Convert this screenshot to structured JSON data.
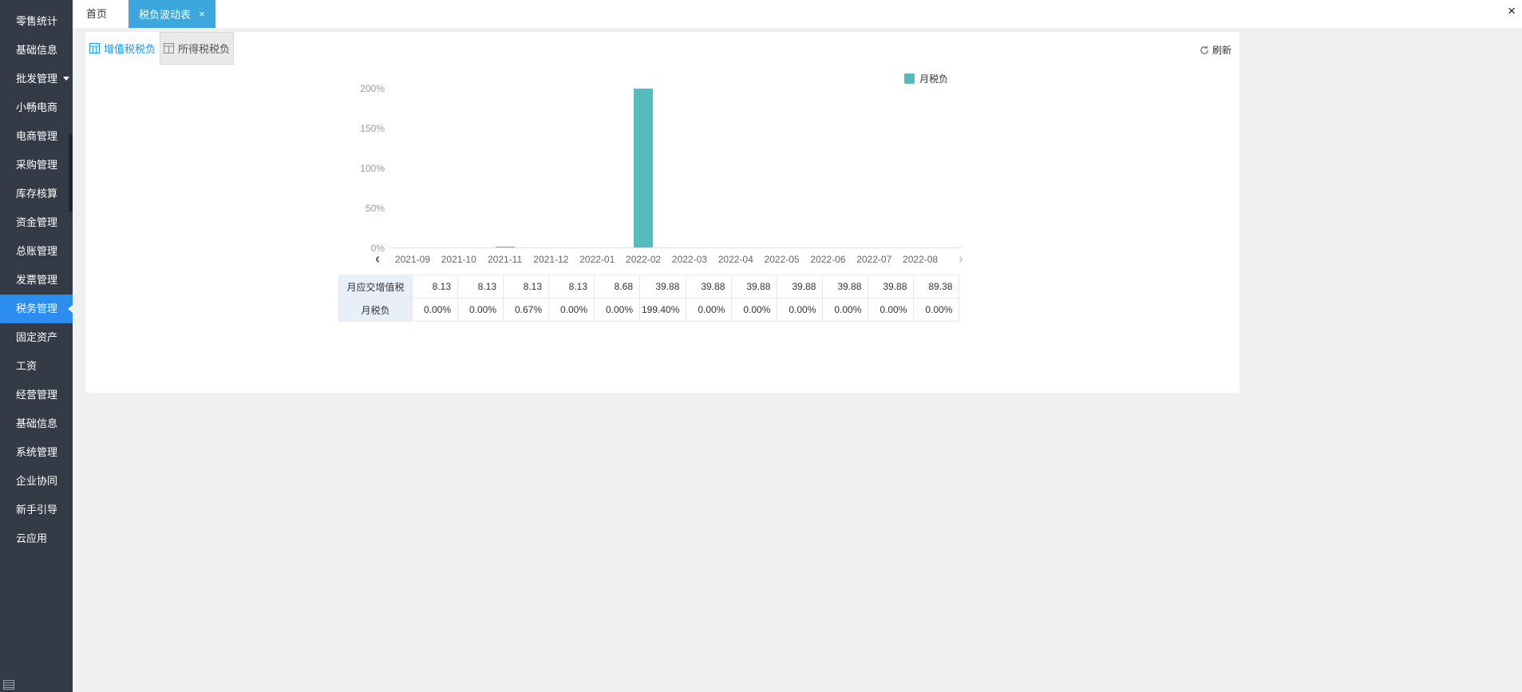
{
  "colors": {
    "page_bg": "#f0f0f0",
    "sidebar_bg": "#343a46",
    "sidebar_active_bg": "#2d8cf0",
    "tab_active_bg": "#3ba7dc",
    "accent_blue": "#2196f3",
    "bar_color": "#54bcbd"
  },
  "sidebar": {
    "items": [
      {
        "label": "零售统计",
        "active": false,
        "has_caret": false
      },
      {
        "label": "基础信息",
        "active": false,
        "has_caret": false
      },
      {
        "label": "批发管理",
        "active": false,
        "has_caret": true
      },
      {
        "label": "小畅电商",
        "active": false,
        "has_caret": false
      },
      {
        "label": "电商管理",
        "active": false,
        "has_caret": false
      },
      {
        "label": "采购管理",
        "active": false,
        "has_caret": false
      },
      {
        "label": "库存核算",
        "active": false,
        "has_caret": false
      },
      {
        "label": "资金管理",
        "active": false,
        "has_caret": false
      },
      {
        "label": "总账管理",
        "active": false,
        "has_caret": false
      },
      {
        "label": "发票管理",
        "active": false,
        "has_caret": false
      },
      {
        "label": "税务管理",
        "active": true,
        "has_caret": false
      },
      {
        "label": "固定资产",
        "active": false,
        "has_caret": false
      },
      {
        "label": "工资",
        "active": false,
        "has_caret": false
      },
      {
        "label": "经营管理",
        "active": false,
        "has_caret": false
      },
      {
        "label": "基础信息",
        "active": false,
        "has_caret": false
      },
      {
        "label": "系统管理",
        "active": false,
        "has_caret": false
      },
      {
        "label": "企业协同",
        "active": false,
        "has_caret": false
      },
      {
        "label": "新手引导",
        "active": false,
        "has_caret": false
      },
      {
        "label": "云应用",
        "active": false,
        "has_caret": false
      }
    ]
  },
  "tabbar": {
    "home_tab": "首页",
    "active_tab": "税负波动表",
    "tab_close": "×",
    "window_close": "×"
  },
  "content": {
    "tabs": [
      {
        "label": "增值税税负",
        "active": true
      },
      {
        "label": "所得税税负",
        "active": false
      }
    ],
    "refresh_label": "刷新"
  },
  "chart_data": {
    "type": "bar",
    "series_name": "月税负",
    "categories": [
      "2021-09",
      "2021-10",
      "2021-11",
      "2021-12",
      "2022-01",
      "2022-02",
      "2022-03",
      "2022-04",
      "2022-05",
      "2022-06",
      "2022-07",
      "2022-08"
    ],
    "values": [
      0.0,
      0.0,
      0.67,
      0.0,
      0.0,
      199.4,
      0.0,
      0.0,
      0.0,
      0.0,
      0.0,
      0.0
    ],
    "unit": "%",
    "y_ticks": [
      "200%",
      "150%",
      "100%",
      "50%",
      "0%"
    ],
    "ylim": [
      0,
      200
    ],
    "grid": false,
    "legend_position": "top-right"
  },
  "table": {
    "rows": [
      {
        "label": "月应交增值税",
        "values": [
          "8.13",
          "8.13",
          "8.13",
          "8.13",
          "8.68",
          "39.88",
          "39.88",
          "39.88",
          "39.88",
          "39.88",
          "39.88",
          "89.38"
        ]
      },
      {
        "label": "月税负",
        "values": [
          "0.00%",
          "0.00%",
          "0.67%",
          "0.00%",
          "0.00%",
          "199.40%",
          "0.00%",
          "0.00%",
          "0.00%",
          "0.00%",
          "0.00%",
          "0.00%"
        ]
      }
    ]
  }
}
